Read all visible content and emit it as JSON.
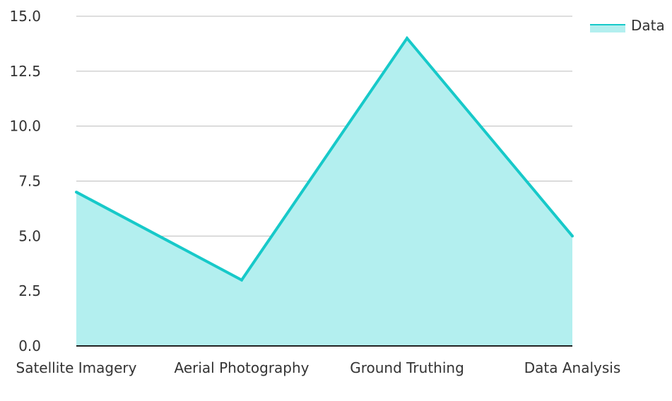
{
  "chart_data": {
    "type": "area",
    "categories": [
      "Satellite Imagery",
      "Aerial Photography",
      "Ground Truthing",
      "Data Analysis"
    ],
    "series": [
      {
        "name": "Data",
        "values": [
          7.0,
          3.0,
          14.0,
          5.0
        ]
      }
    ],
    "yticks": [
      "0.0",
      "2.5",
      "5.0",
      "7.5",
      "10.0",
      "12.5",
      "15.0"
    ],
    "ylim": [
      0,
      15
    ],
    "grid": true,
    "legend_position": "top-right",
    "colors": {
      "line": "#17c9c9",
      "fill": "#b3efef",
      "grid": "#bdbdbd",
      "axis": "#222222"
    }
  }
}
